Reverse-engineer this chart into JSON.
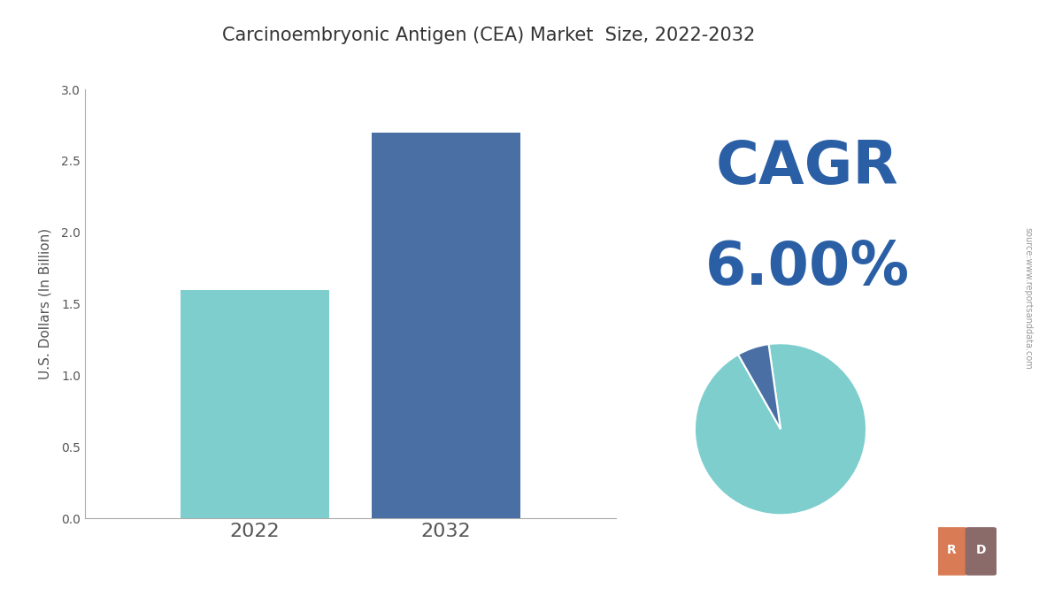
{
  "title": "Carcinoembryonic Antigen (CEA) Market  Size, 2022-2032",
  "title_fontsize": 15,
  "title_color": "#333333",
  "bar_categories": [
    "2022",
    "2032"
  ],
  "bar_values": [
    1.6,
    2.7
  ],
  "bar_colors": [
    "#7ECECE",
    "#4A6FA5"
  ],
  "bar_width": 0.28,
  "ylabel": "U.S. Dollars (In Billion)",
  "ylabel_fontsize": 11,
  "ylim": [
    0,
    3.0
  ],
  "yticks": [
    0.0,
    0.5,
    1.0,
    1.5,
    2.0,
    2.5,
    3.0
  ],
  "xlabel_fontsize": 16,
  "cagr_text_line1": "CAGR",
  "cagr_text_line2": "6.00%",
  "cagr_color": "#2B5FA5",
  "cagr_fontsize1": 48,
  "cagr_fontsize2": 48,
  "pie_colors": [
    "#7ECECE",
    "#4A6FA5"
  ],
  "pie_values": [
    94,
    6
  ],
  "pie_startangle": 98,
  "source_text": "source:www.reportsanddata.com",
  "background_color": "#FFFFFF",
  "rd_r_color": "#D97B55",
  "rd_d_color": "#8B6A6A"
}
